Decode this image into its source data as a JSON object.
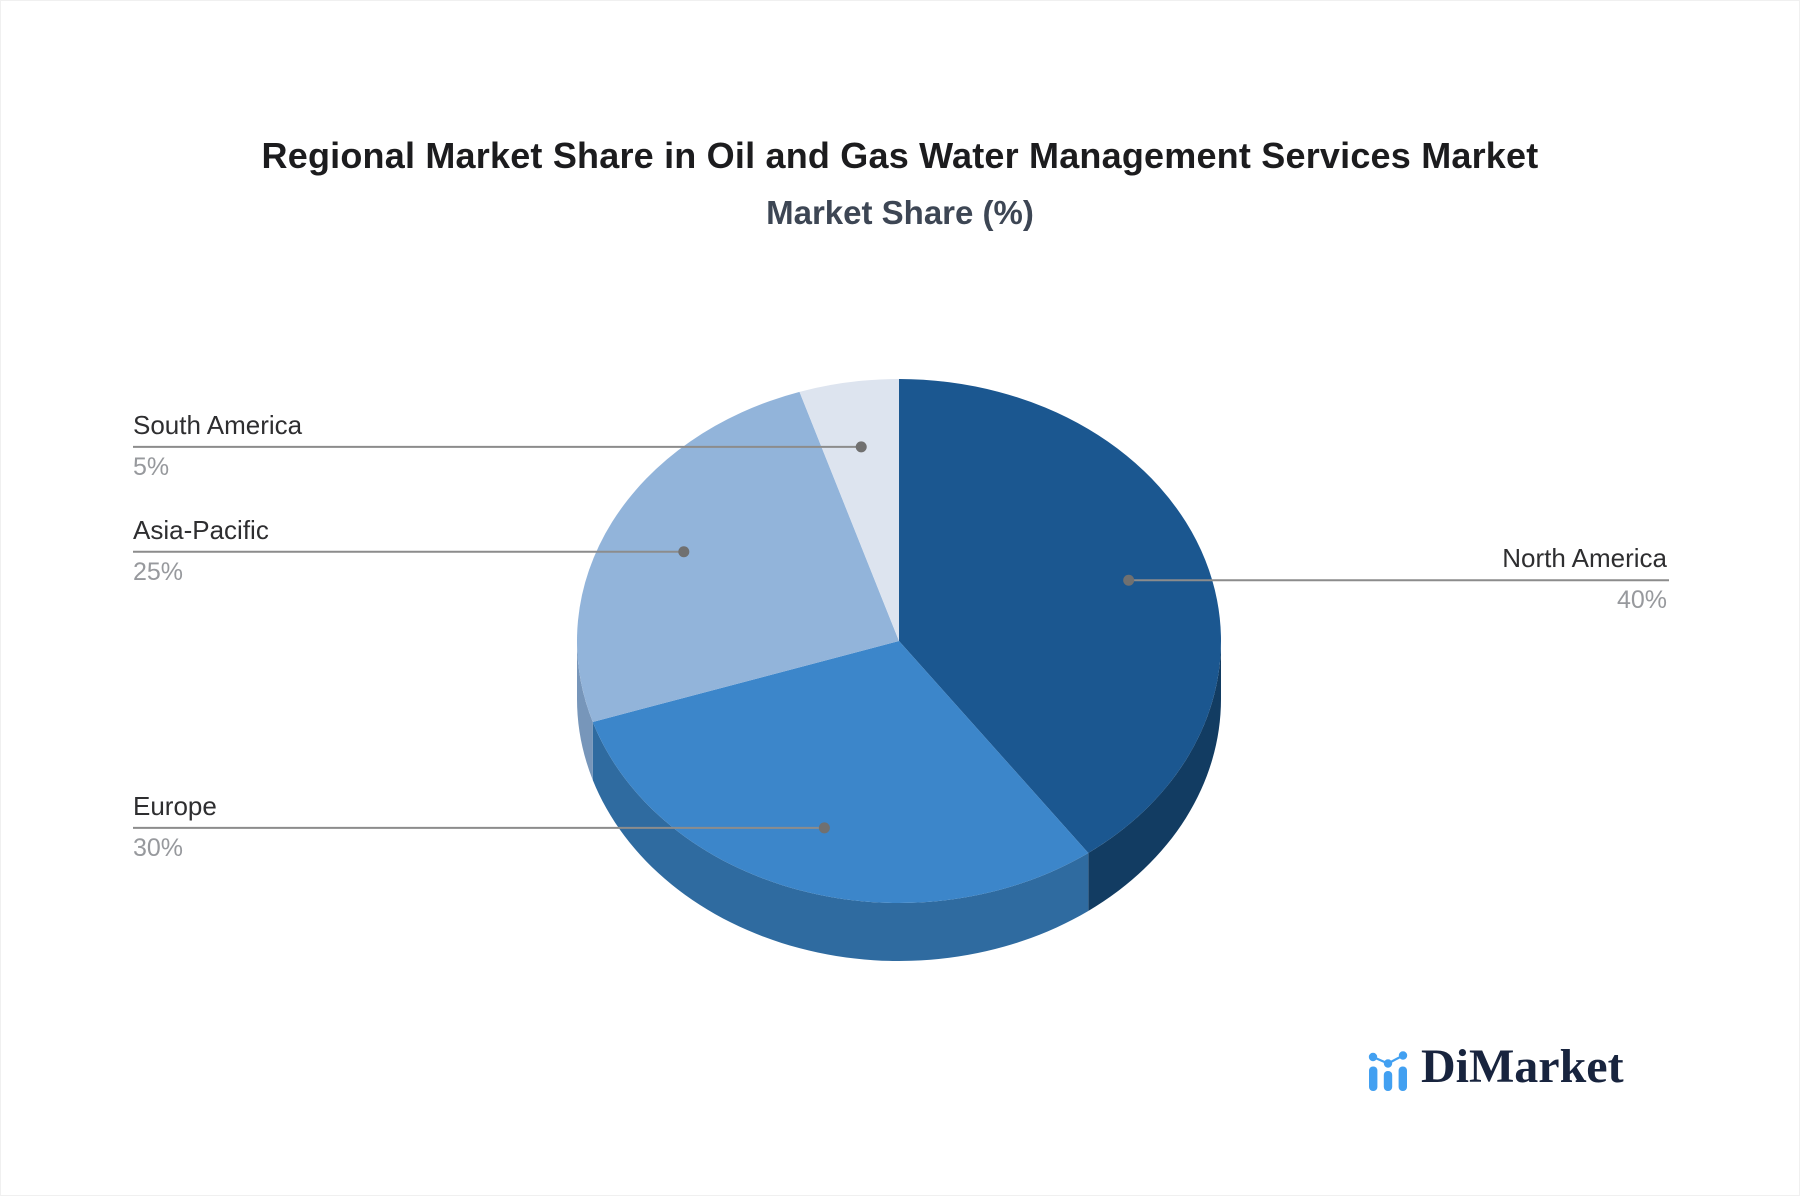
{
  "header": {
    "title": "Regional Market Share in Oil and Gas Water Management Services Market",
    "subtitle": "Market Share (%)"
  },
  "chart_data": {
    "type": "pie",
    "three_d": true,
    "start_position": "12-oclock",
    "direction": "clockwise",
    "labels": [
      "North America",
      "Europe",
      "Asia-Pacific",
      "South America"
    ],
    "values": [
      40,
      30,
      25,
      5
    ],
    "display_values": [
      "40%",
      "30%",
      "25%",
      "5%"
    ],
    "colors_top": [
      "#1B5790",
      "#3C86CA",
      "#92B4DA",
      "#DDE4EF"
    ],
    "colors_side": [
      "#123C62",
      "#2F6BA0",
      "#7796BA",
      "#C4CEDE"
    ],
    "title": "Regional Market Share in Oil and Gas Water Management Services Market",
    "subtitle": "Market Share (%)",
    "legend": "none",
    "label_style": {
      "leader_line_color": "#8C8C8C",
      "leader_dot_color": "#707070",
      "name_color": "#2E2E30",
      "value_color": "#97999D"
    }
  },
  "branding": {
    "logo_text": "DiMarket",
    "logo_icon": "bar-chart-with-trend-dots-icon",
    "logo_text_color": "#18243E",
    "logo_accent_color": "#42A0F1"
  }
}
